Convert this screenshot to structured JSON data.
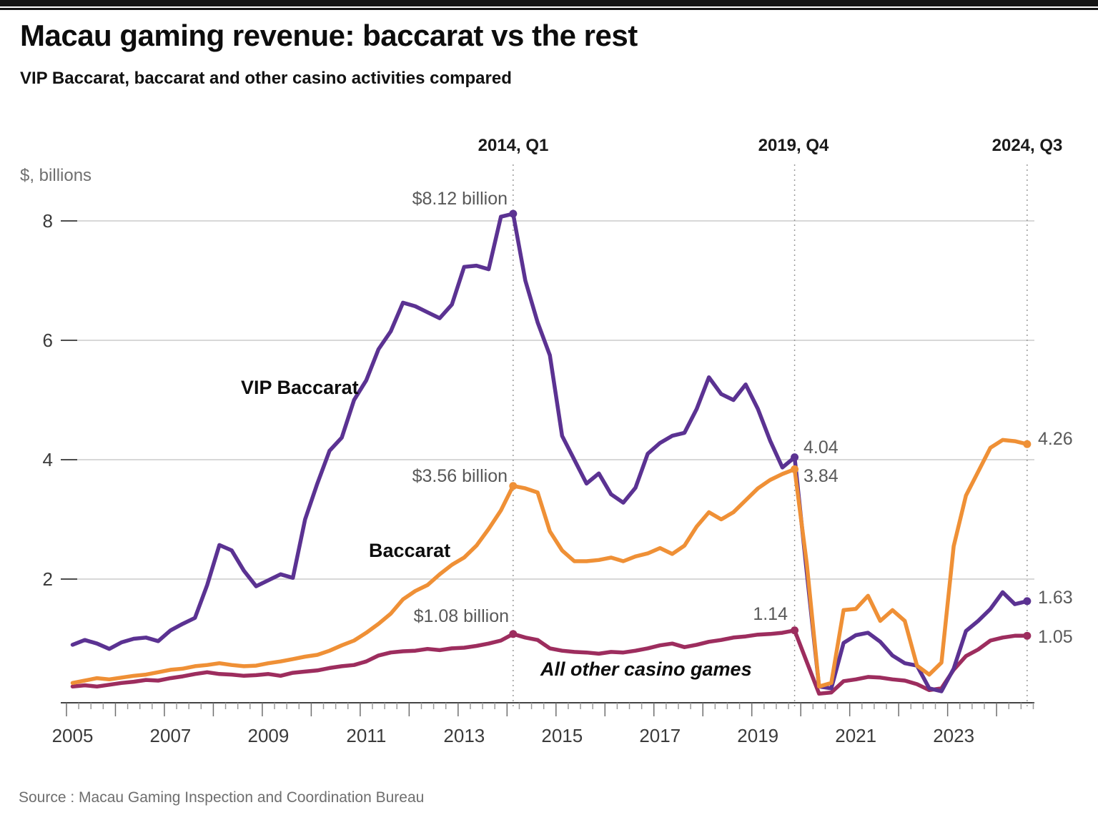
{
  "page": {
    "title": "Macau gaming revenue: baccarat vs the rest",
    "subtitle": "VIP Baccarat, baccarat and other casino activities compared",
    "source": "Source : Macau Gaming Inspection and Coordination Bureau"
  },
  "chart_data": {
    "type": "line",
    "title": "Macau gaming revenue: baccarat vs the rest",
    "subtitle": "VIP Baccarat, baccarat and other casino activities compared",
    "ylabel": "$, billions",
    "xlabel": "",
    "ylim": [
      0,
      8.5
    ],
    "yticks": [
      8,
      6,
      4,
      2
    ],
    "grid": "horizontal",
    "legend_position": "inline-labels",
    "x_tick_labels": [
      "2005",
      "2007",
      "2009",
      "2011",
      "2013",
      "2015",
      "2017",
      "2019",
      "2021",
      "2023"
    ],
    "categories": [
      "2005 Q1",
      "2005 Q2",
      "2005 Q3",
      "2005 Q4",
      "2006 Q1",
      "2006 Q2",
      "2006 Q3",
      "2006 Q4",
      "2007 Q1",
      "2007 Q2",
      "2007 Q3",
      "2007 Q4",
      "2008 Q1",
      "2008 Q2",
      "2008 Q3",
      "2008 Q4",
      "2009 Q1",
      "2009 Q2",
      "2009 Q3",
      "2009 Q4",
      "2010 Q1",
      "2010 Q2",
      "2010 Q3",
      "2010 Q4",
      "2011 Q1",
      "2011 Q2",
      "2011 Q3",
      "2011 Q4",
      "2012 Q1",
      "2012 Q2",
      "2012 Q3",
      "2012 Q4",
      "2013 Q1",
      "2013 Q2",
      "2013 Q3",
      "2013 Q4",
      "2014 Q1",
      "2014 Q2",
      "2014 Q3",
      "2014 Q4",
      "2015 Q1",
      "2015 Q2",
      "2015 Q3",
      "2015 Q4",
      "2016 Q1",
      "2016 Q2",
      "2016 Q3",
      "2016 Q4",
      "2017 Q1",
      "2017 Q2",
      "2017 Q3",
      "2017 Q4",
      "2018 Q1",
      "2018 Q2",
      "2018 Q3",
      "2018 Q4",
      "2019 Q1",
      "2019 Q2",
      "2019 Q3",
      "2019 Q4",
      "2020 Q1",
      "2020 Q2",
      "2020 Q3",
      "2020 Q4",
      "2021 Q1",
      "2021 Q2",
      "2021 Q3",
      "2021 Q4",
      "2022 Q1",
      "2022 Q2",
      "2022 Q3",
      "2022 Q4",
      "2023 Q1",
      "2023 Q2",
      "2023 Q3",
      "2023 Q4",
      "2024 Q1",
      "2024 Q2",
      "2024 Q3"
    ],
    "series": [
      {
        "name": "VIP Baccarat",
        "color": "#5b3292",
        "values": [
          0.9,
          0.98,
          0.92,
          0.83,
          0.94,
          1.0,
          1.02,
          0.96,
          1.14,
          1.25,
          1.35,
          1.9,
          2.57,
          2.48,
          2.14,
          1.88,
          1.98,
          2.08,
          2.02,
          3.0,
          3.6,
          4.15,
          4.37,
          5.0,
          5.33,
          5.85,
          6.15,
          6.63,
          6.57,
          6.47,
          6.37,
          6.6,
          7.23,
          7.25,
          7.19,
          8.07,
          8.12,
          7.0,
          6.3,
          5.75,
          4.4,
          4.0,
          3.6,
          3.77,
          3.42,
          3.28,
          3.53,
          4.1,
          4.28,
          4.4,
          4.45,
          4.85,
          5.38,
          5.1,
          5.0,
          5.26,
          4.85,
          4.32,
          3.87,
          4.04,
          2.1,
          0.2,
          0.17,
          0.93,
          1.06,
          1.1,
          0.95,
          0.72,
          0.59,
          0.55,
          0.17,
          0.12,
          0.5,
          1.13,
          1.3,
          1.5,
          1.78,
          1.58,
          1.63
        ]
      },
      {
        "name": "Baccarat",
        "color": "#ef9036",
        "values": [
          0.26,
          0.3,
          0.34,
          0.32,
          0.35,
          0.38,
          0.4,
          0.44,
          0.48,
          0.5,
          0.54,
          0.56,
          0.59,
          0.56,
          0.54,
          0.55,
          0.59,
          0.62,
          0.66,
          0.7,
          0.73,
          0.8,
          0.89,
          0.97,
          1.1,
          1.25,
          1.42,
          1.66,
          1.8,
          1.9,
          2.08,
          2.24,
          2.36,
          2.56,
          2.84,
          3.15,
          3.56,
          3.52,
          3.45,
          2.8,
          2.48,
          2.3,
          2.3,
          2.32,
          2.36,
          2.3,
          2.38,
          2.43,
          2.52,
          2.42,
          2.56,
          2.88,
          3.12,
          3.0,
          3.12,
          3.32,
          3.52,
          3.66,
          3.76,
          3.84,
          2.25,
          0.2,
          0.26,
          1.48,
          1.5,
          1.72,
          1.3,
          1.48,
          1.3,
          0.55,
          0.4,
          0.6,
          2.55,
          3.4,
          3.8,
          4.2,
          4.33,
          4.31,
          4.26
        ]
      },
      {
        "name": "All other casino games",
        "color": "#9d2d5e",
        "values": [
          0.2,
          0.22,
          0.2,
          0.23,
          0.26,
          0.28,
          0.31,
          0.3,
          0.34,
          0.37,
          0.41,
          0.44,
          0.41,
          0.4,
          0.38,
          0.39,
          0.41,
          0.38,
          0.43,
          0.45,
          0.47,
          0.51,
          0.54,
          0.56,
          0.62,
          0.72,
          0.77,
          0.79,
          0.8,
          0.83,
          0.81,
          0.84,
          0.85,
          0.88,
          0.92,
          0.97,
          1.08,
          1.02,
          0.98,
          0.84,
          0.8,
          0.78,
          0.77,
          0.75,
          0.78,
          0.77,
          0.8,
          0.84,
          0.89,
          0.92,
          0.86,
          0.9,
          0.95,
          0.98,
          1.02,
          1.04,
          1.07,
          1.08,
          1.1,
          1.14,
          0.61,
          0.08,
          0.1,
          0.29,
          0.32,
          0.36,
          0.35,
          0.32,
          0.3,
          0.24,
          0.14,
          0.17,
          0.48,
          0.71,
          0.82,
          0.97,
          1.02,
          1.05,
          1.05
        ]
      }
    ],
    "annotations": {
      "vlines": [
        {
          "label": "2014, Q1",
          "index": 36
        },
        {
          "label": "2019, Q4",
          "index": 59
        },
        {
          "label": "2024, Q3",
          "index": 78
        }
      ],
      "marker_indices": [
        36,
        59,
        78
      ],
      "callouts": {
        "vip_2014": "$8.12 billion",
        "bac_2014": "$3.56 billion",
        "oth_2014": "$1.08 billion",
        "vip_2019": "4.04",
        "bac_2019": "3.84",
        "oth_2019": "1.14",
        "bac_2024": "4.26",
        "vip_2024": "1.63",
        "oth_2024": "1.05"
      }
    }
  }
}
